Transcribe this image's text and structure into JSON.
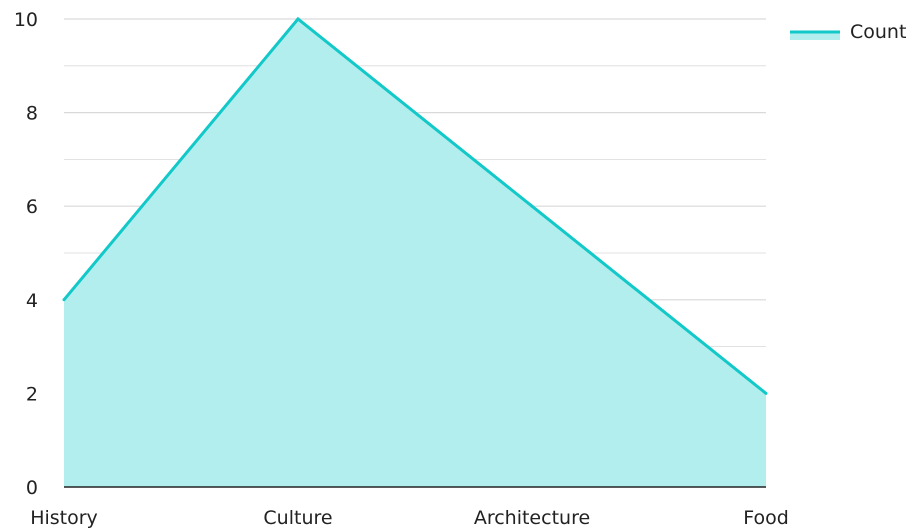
{
  "chart_data": {
    "type": "area",
    "categories": [
      "History",
      "Culture",
      "Architecture",
      "Food"
    ],
    "series": [
      {
        "name": "Count",
        "values": [
          4,
          10,
          6,
          2
        ],
        "line_color": "#12c8c8",
        "fill_color": "#b2eeee"
      }
    ],
    "ylim": [
      0,
      10
    ],
    "yticks": [
      0,
      2,
      4,
      6,
      8,
      10
    ],
    "minor_gridlines": true,
    "grid": true,
    "legend_position": "top-right",
    "title": "",
    "xlabel": "",
    "ylabel": ""
  },
  "colors": {
    "grid": "#d9d9d9",
    "axis": "#222222",
    "text": "#222222"
  }
}
